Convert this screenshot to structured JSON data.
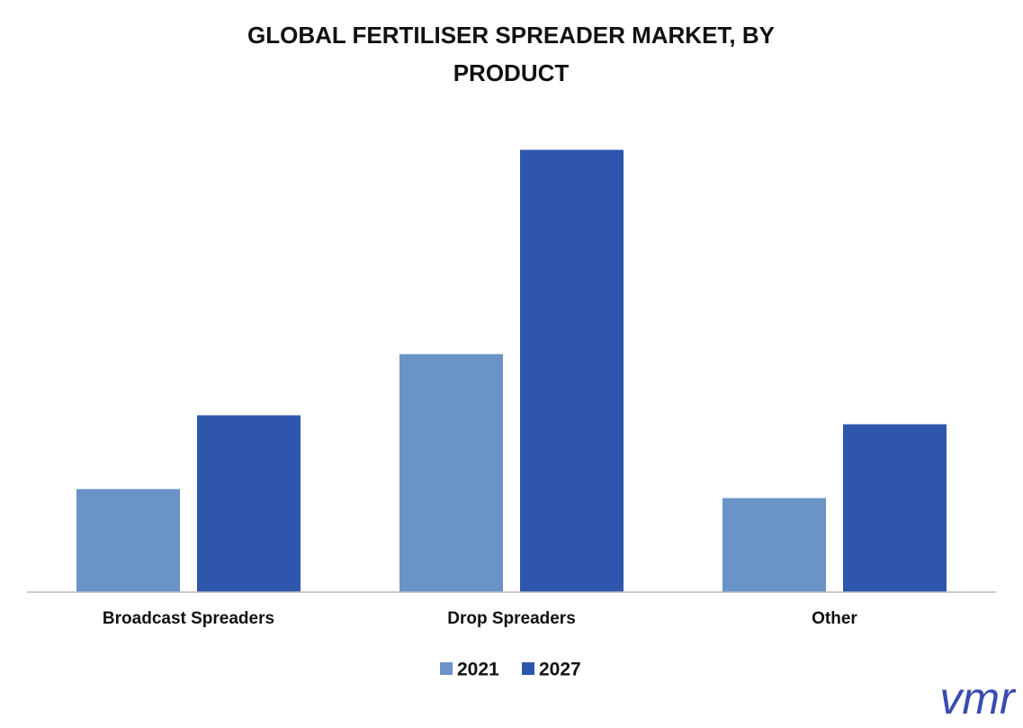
{
  "chart_data": {
    "type": "bar",
    "title": "GLOBAL FERTILISER SPREADER MARKET, BY PRODUCT",
    "categories": [
      "Broadcast Spreaders",
      "Drop Spreaders",
      "Other"
    ],
    "series": [
      {
        "name": "2021",
        "color": "#6a93c8",
        "values": [
          114,
          264,
          104
        ]
      },
      {
        "name": "2027",
        "color": "#2e56ad",
        "values": [
          196,
          491,
          186
        ]
      }
    ],
    "ylim": [
      0,
      540
    ],
    "grid": false,
    "legend": "bottom",
    "logo": "vmr"
  }
}
